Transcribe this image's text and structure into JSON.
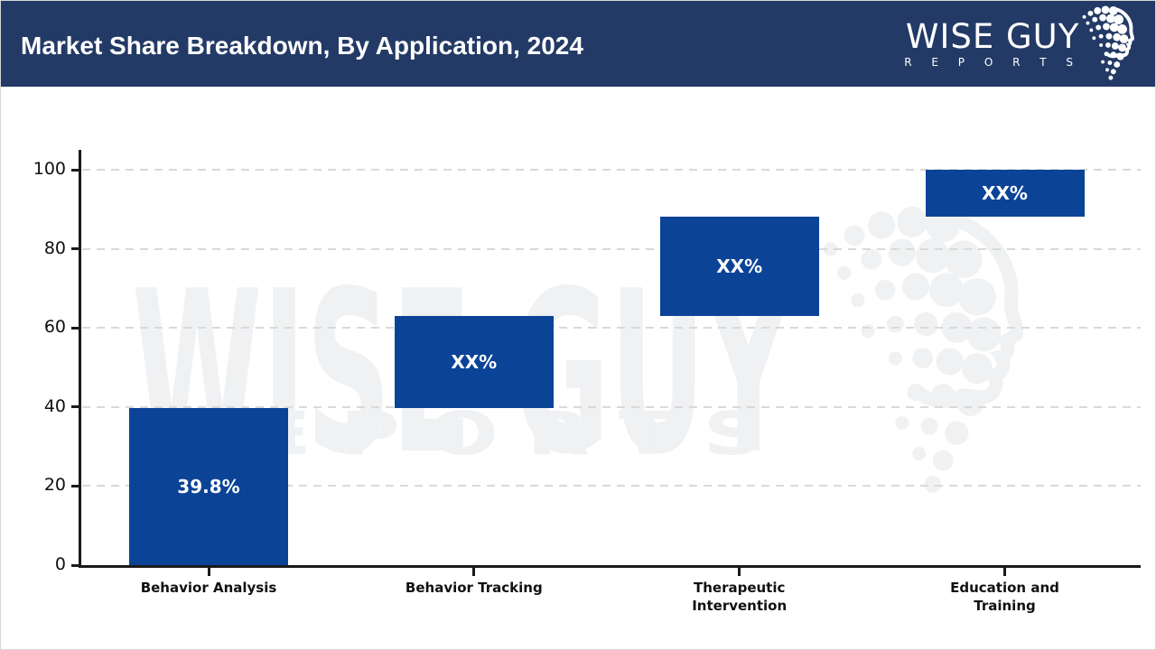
{
  "header": {
    "title": "Market Share Breakdown, By Application, 2024",
    "logo": {
      "line1": "WISE GUY",
      "line2": "R E P O R T S"
    }
  },
  "watermark": {
    "line1": "WISE GUY",
    "line2": "R E P O R T S"
  },
  "colors": {
    "header_bg": "#233a66",
    "bar": "#0b4397",
    "grid": "#d9d9d9",
    "axis": "#1a1a1a",
    "bar_label": "#ffffff",
    "watermark": "#f0f1f3"
  },
  "chart_data": {
    "type": "bar",
    "variant": "waterfall",
    "title": "Market Share Breakdown, By Application, 2024",
    "categories": [
      "Behavior Analysis",
      "Behavior Tracking",
      "Therapeutic Intervention",
      "Education and Training"
    ],
    "segments": [
      {
        "category": "Behavior Analysis",
        "start": 0,
        "end": 39.8,
        "value": 39.8,
        "label": "39.8%"
      },
      {
        "category": "Behavior Tracking",
        "start": 39.8,
        "end": 63.0,
        "value": 23.2,
        "label": "XX%"
      },
      {
        "category": "Therapeutic Intervention",
        "start": 63.0,
        "end": 88.2,
        "value": 25.2,
        "label": "XX%"
      },
      {
        "category": "Education and Training",
        "start": 88.2,
        "end": 100.0,
        "value": 11.8,
        "label": "XX%"
      }
    ],
    "xlabel": "",
    "ylabel": "",
    "ylim": [
      0,
      100
    ],
    "yticks": [
      0,
      20,
      40,
      60,
      80,
      100
    ],
    "grid": "horizontal-dashed",
    "legend": "none",
    "bar_color": "#0b4397"
  }
}
